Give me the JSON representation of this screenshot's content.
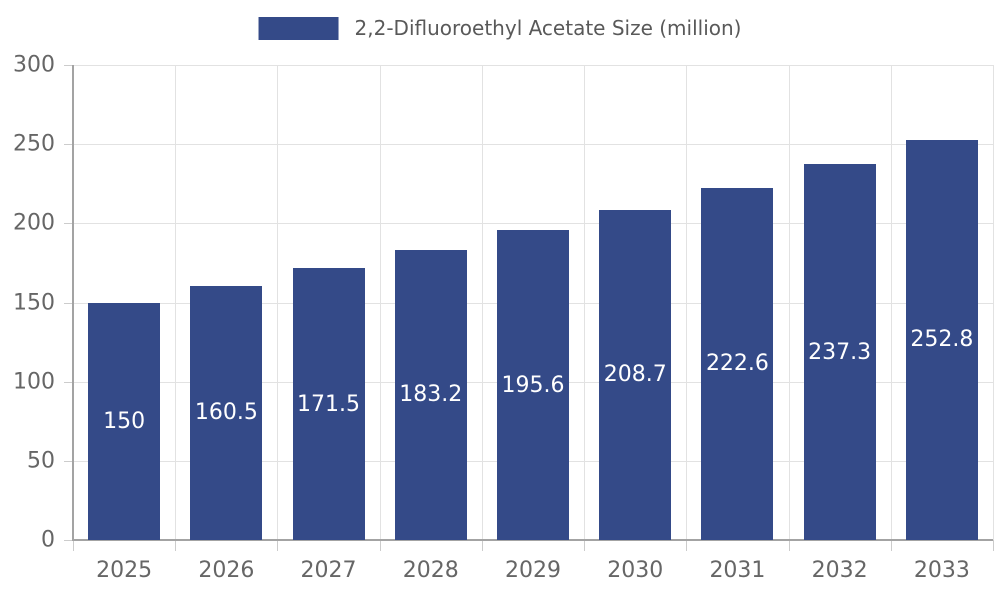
{
  "legend": {
    "label": "2,2-Difluoroethyl Acetate Size (million)"
  },
  "colors": {
    "bar": "#344a88",
    "legend_text": "#595959",
    "axis_text": "#666666",
    "grid_line": "#e2e2e2",
    "tick_line": "#cccccc",
    "axis_line": "#a3a3a3",
    "value_label": "#ffffff",
    "background": "#ffffff"
  },
  "chart_data": {
    "type": "bar",
    "title": "2,2-Difluoroethyl Acetate Size (million)",
    "series_name": "2,2-Difluoroethyl Acetate Size (million)",
    "categories": [
      "2025",
      "2026",
      "2027",
      "2028",
      "2029",
      "2030",
      "2031",
      "2032",
      "2033"
    ],
    "values": [
      150,
      160.5,
      171.5,
      183.2,
      195.6,
      208.7,
      222.6,
      237.3,
      252.8
    ],
    "value_labels": [
      "150",
      "160.5",
      "171.5",
      "183.2",
      "195.6",
      "208.7",
      "222.6",
      "237.3",
      "252.8"
    ],
    "xlabel": "",
    "ylabel": "",
    "ylim": [
      0,
      300
    ],
    "yticks": [
      0,
      50,
      100,
      150,
      200,
      250,
      300
    ],
    "grid": true,
    "legend_position": "top-center",
    "value_label_position": "inside-center"
  }
}
